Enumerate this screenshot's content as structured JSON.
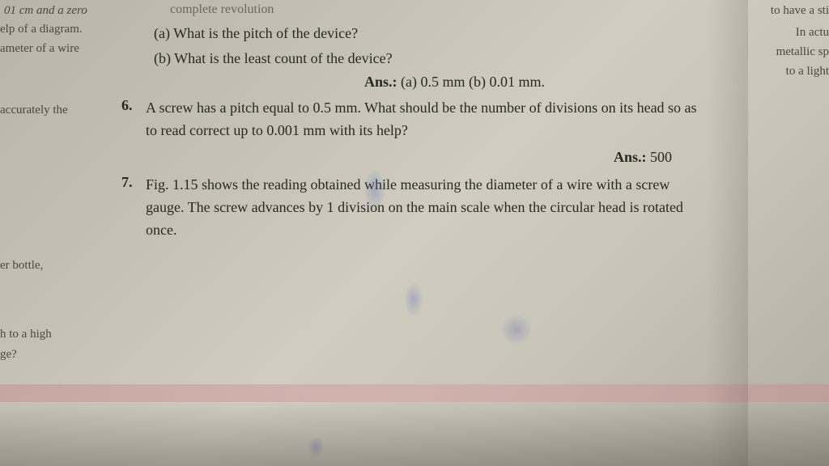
{
  "left_margin": {
    "line1": "01 cm and a zero",
    "line2": "elp of a diagram.",
    "line3": "ameter of a wire",
    "line4": "accurately the",
    "line5": "er bottle,",
    "line6": "h to a high",
    "line7": "ge?"
  },
  "right_margin": {
    "line1": "to have a sti",
    "line2": "In actu",
    "line3": "metallic sp",
    "line4": "to a light"
  },
  "content": {
    "partial_top": "complete revolution",
    "qa": "(a)  What is the pitch of the device?",
    "qb": "(b)  What is the least count of the device?",
    "ans_ab_label": "Ans.:",
    "ans_ab": " (a) 0.5 mm (b) 0.01 mm.",
    "q6_num": "6.",
    "q6_body": "A screw has a pitch equal to 0.5 mm. What should be the number of divisions on its head so as to read correct up to 0.001 mm with its help?",
    "ans6_label": "Ans.:",
    "ans6": " 500",
    "q7_num": "7.",
    "q7_body": "Fig. 1.15 shows the reading obtained while measuring the diameter of a wire with a screw gauge. The screw advances by 1 division on the main scale when the circular head is rotated once."
  },
  "style": {
    "text_color": "#2a2824",
    "margin_text_color": "#4a4842",
    "background_tone": "#c5c1b5",
    "highlight_color": "#d4a0a0",
    "stain_color": "rgba(80,100,180,0.3)",
    "body_fontsize": 18,
    "margin_fontsize": 15
  }
}
